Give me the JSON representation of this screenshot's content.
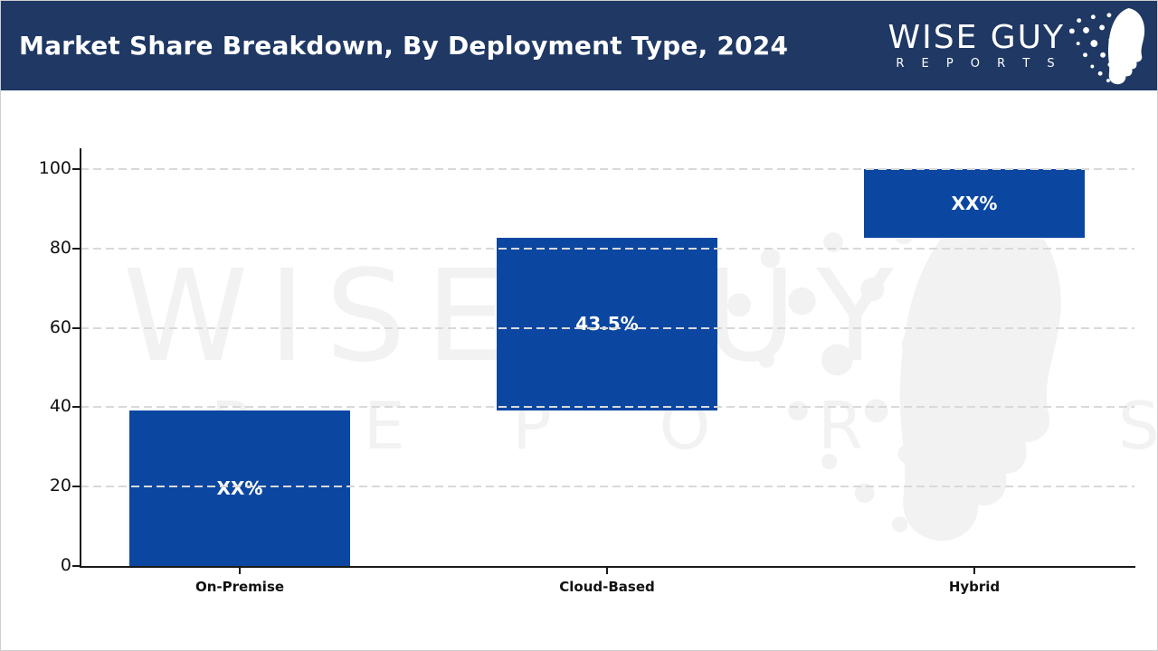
{
  "header": {
    "title": "Market Share Breakdown, By Deployment Type, 2024",
    "bg_color": "#1F3864",
    "logo": {
      "wordmark": "WISE GUY",
      "sub": "R E P O R T S",
      "face_icon": "dotted-head-profile"
    }
  },
  "watermark": {
    "wordmark": "WISE GUY",
    "sub": "R E P O R T S",
    "face_icon": "dotted-head-profile"
  },
  "chart_data": {
    "type": "bar",
    "subtype": "waterfall-segments",
    "title": "Market Share Breakdown, By Deployment Type, 2024",
    "xlabel": "",
    "ylabel": "",
    "categories": [
      "On-Premise",
      "Cloud-Based",
      "Hybrid"
    ],
    "segments": [
      {
        "category": "On-Premise",
        "start": 0,
        "end": 39.2,
        "label": "XX%"
      },
      {
        "category": "Cloud-Based",
        "start": 39.2,
        "end": 82.7,
        "label": "43.5%"
      },
      {
        "category": "Hybrid",
        "start": 82.7,
        "end": 100,
        "label": "XX%"
      }
    ],
    "yticks": [
      0,
      20,
      40,
      60,
      80,
      100
    ],
    "ylim": [
      0,
      105
    ],
    "grid": {
      "horizontal": true,
      "style": "dashed",
      "color": "#d9d9d9",
      "above_bars": true
    },
    "legend": "none",
    "bar_color": "#0B47A1",
    "bar_label_color": "#FFFFFF",
    "axis_color": "#1a1a1a",
    "tick_label_color": "#111111"
  }
}
